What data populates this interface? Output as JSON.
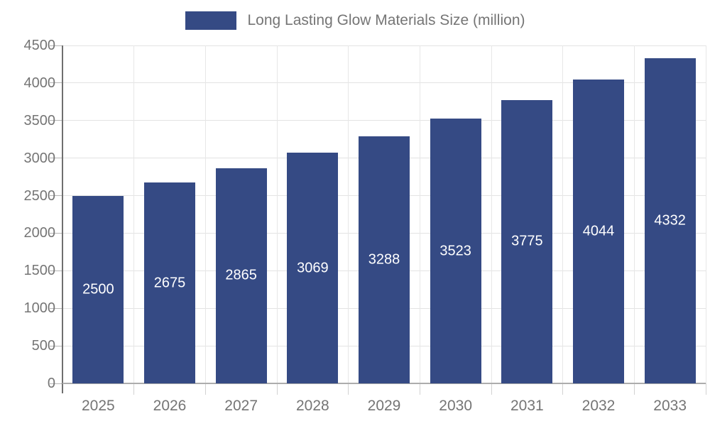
{
  "legend": {
    "label": "Long Lasting Glow Materials Size (million)",
    "swatch_color": "#354a84"
  },
  "chart_data": {
    "type": "bar",
    "title": "Long Lasting Glow Materials Size (million)",
    "categories": [
      "2025",
      "2026",
      "2027",
      "2028",
      "2029",
      "2030",
      "2031",
      "2032",
      "2033"
    ],
    "values": [
      2500,
      2675,
      2865,
      3069,
      3288,
      3523,
      3775,
      4044,
      4332
    ],
    "xlabel": "",
    "ylabel": "",
    "ylim": [
      0,
      4500
    ],
    "ytick_step": 500,
    "yticks": [
      0,
      500,
      1000,
      1500,
      2000,
      2500,
      3000,
      3500,
      4000,
      4500
    ],
    "grid": true,
    "legend_position": "top-center",
    "value_labels": "inside-center",
    "colors": {
      "bar": "#354a84",
      "value_label": "#ffffff",
      "axis_text": "#757575",
      "gridline": "#e3e3e3",
      "y_axis_line": "#6f6f6f",
      "x_axis_line": "#adadad",
      "background": "#ffffff"
    }
  }
}
